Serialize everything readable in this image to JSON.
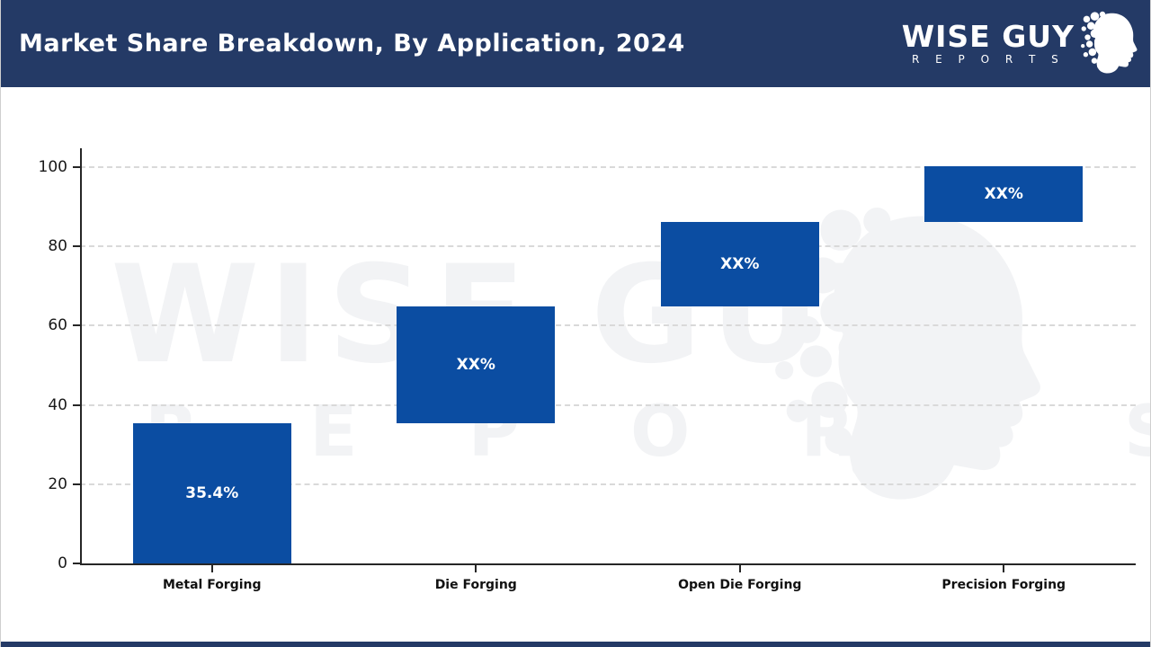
{
  "header": {
    "title": "Market Share Breakdown, By Application, 2024",
    "logo": {
      "primary": "WISE GUY",
      "secondary": "R E P O R T S"
    }
  },
  "watermark": {
    "primary": "WISE GUY",
    "secondary": "R E P O R T S"
  },
  "chart_data": {
    "type": "bar",
    "variant": "floating-waterfall",
    "title": "Market Share Breakdown, By Application, 2024",
    "categories": [
      "Metal Forging",
      "Die Forging",
      "Open Die Forging",
      "Precision Forging"
    ],
    "series": [
      {
        "name": "Market Share (%)",
        "segments": [
          {
            "category": "Metal Forging",
            "start": 0,
            "end": 35.4,
            "label": "35.4%"
          },
          {
            "category": "Die Forging",
            "start": 35.4,
            "end": 64.9,
            "label": "XX%"
          },
          {
            "category": "Open Die Forging",
            "start": 64.9,
            "end": 86.2,
            "label": "XX%"
          },
          {
            "category": "Precision Forging",
            "start": 86.2,
            "end": 100.3,
            "label": "XX%"
          }
        ]
      }
    ],
    "yticks": [
      0,
      20,
      40,
      60,
      80,
      100
    ],
    "ylim": [
      0,
      104.8
    ],
    "xlabel": "",
    "ylabel": "",
    "grid": "horizontal-dashed",
    "legend": "none",
    "bar_color": "#0b4da2"
  },
  "colors": {
    "header_bg": "#243a66",
    "footer_bg": "#243a66",
    "bar": "#0b4da2",
    "axis": "#262626",
    "gridline": "#d9d9d9",
    "tick_label": "#191919",
    "bar_label": "#ffffff",
    "watermark": "#f2f3f5"
  }
}
